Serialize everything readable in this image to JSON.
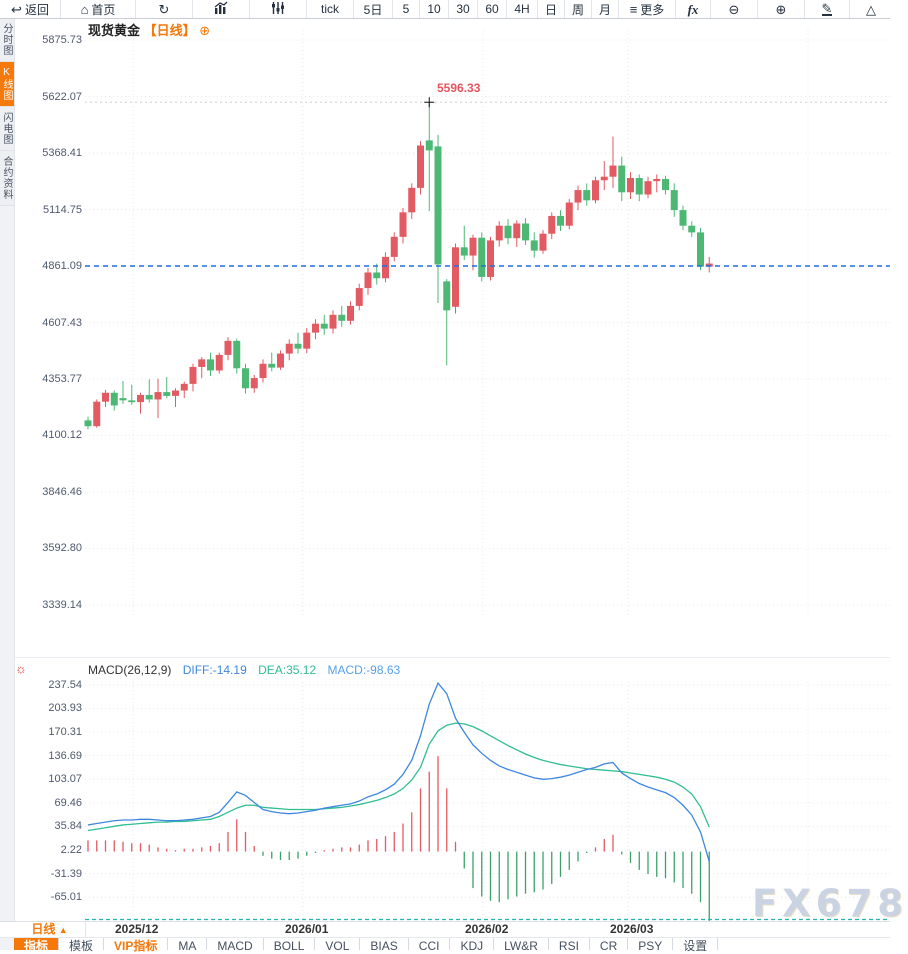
{
  "toolbar": {
    "items": [
      {
        "id": "back",
        "icon": "↩",
        "label": "返回"
      },
      {
        "id": "home",
        "icon": "⌂",
        "label": "首页"
      },
      {
        "id": "refresh",
        "icon": "↻",
        "label": ""
      },
      {
        "id": "trend-chart",
        "icon": "svg-bars",
        "label": ""
      },
      {
        "id": "candle-chart",
        "icon": "svg-sliders",
        "label": ""
      },
      {
        "id": "tick",
        "icon": "",
        "label": "tick"
      },
      {
        "id": "period-5d",
        "icon": "",
        "label": "5日"
      },
      {
        "id": "period-5",
        "icon": "",
        "label": "5"
      },
      {
        "id": "period-10",
        "icon": "",
        "label": "10"
      },
      {
        "id": "period-30",
        "icon": "",
        "label": "30"
      },
      {
        "id": "period-60",
        "icon": "",
        "label": "60"
      },
      {
        "id": "period-4h",
        "icon": "",
        "label": "4H"
      },
      {
        "id": "period-day",
        "icon": "",
        "label": "日"
      },
      {
        "id": "period-week",
        "icon": "",
        "label": "周"
      },
      {
        "id": "period-month",
        "icon": "",
        "label": "月"
      },
      {
        "id": "more",
        "icon": "≡",
        "label": "更多"
      },
      {
        "id": "fx",
        "icon": "fx-glyph",
        "label": ""
      },
      {
        "id": "zoom-out",
        "icon": "⊖",
        "label": ""
      },
      {
        "id": "zoom-in",
        "icon": "⊕",
        "label": ""
      },
      {
        "id": "draw-line",
        "icon": "pencil",
        "label": ""
      },
      {
        "id": "shape-tool",
        "icon": "△",
        "label": ""
      }
    ]
  },
  "sidebar": {
    "tabs": [
      {
        "label": "分时图",
        "active": false
      },
      {
        "label": "K线图",
        "active": true
      },
      {
        "label": "闪电图",
        "active": false
      },
      {
        "label": "合约资料",
        "active": false
      }
    ]
  },
  "chart": {
    "title": "现货黄金",
    "period_tag": "【日线】",
    "expand_icon": "⊕",
    "high_annotation": "5596.33"
  },
  "macd_header": {
    "name": "MACD(26,12,9)",
    "diff": "DIFF:-14.19",
    "dea": "DEA:35.12",
    "macd": "MACD:-98.63",
    "gear_icon": "☼"
  },
  "xaxis": {
    "period_label": "日线",
    "period_arrow": "▲",
    "labels": [
      "2025/12",
      "2026/01",
      "2026/02",
      "2026/03"
    ]
  },
  "bottom_tabs": [
    {
      "label": "指标",
      "active": true,
      "vip": false
    },
    {
      "label": "模板",
      "active": false,
      "vip": false
    },
    {
      "label": "VIP指标",
      "active": false,
      "vip": true
    },
    {
      "label": "MA",
      "active": false,
      "vip": false
    },
    {
      "label": "MACD",
      "active": false,
      "vip": false
    },
    {
      "label": "BOLL",
      "active": false,
      "vip": false
    },
    {
      "label": "VOL",
      "active": false,
      "vip": false
    },
    {
      "label": "BIAS",
      "active": false,
      "vip": false
    },
    {
      "label": "CCI",
      "active": false,
      "vip": false
    },
    {
      "label": "KDJ",
      "active": false,
      "vip": false
    },
    {
      "label": "LW&R",
      "active": false,
      "vip": false
    },
    {
      "label": "RSI",
      "active": false,
      "vip": false
    },
    {
      "label": "CR",
      "active": false,
      "vip": false
    },
    {
      "label": "PSY",
      "active": false,
      "vip": false
    },
    {
      "label": "设置",
      "active": false,
      "vip": false
    }
  ],
  "watermark": "FX678",
  "colors": {
    "up": "#e25a62",
    "down": "#4cb873",
    "diff_line": "#3d87e0",
    "dea_line": "#2fbd92",
    "price_line": "#1f6fe0",
    "accent_orange": "#f5780a",
    "annotation_red": "#e85360",
    "macd_dash_teal": "#26b3ad",
    "grid": "#e4e7eb",
    "high_line": "#d0d0d0"
  },
  "chart_data": {
    "type": "candlestick",
    "instrument": "现货黄金",
    "period": "日线",
    "price_axis_labels": [
      "5875.73",
      "5622.07",
      "5368.41",
      "5114.75",
      "4861.09",
      "4607.43",
      "4353.77",
      "4100.12",
      "3846.46",
      "3592.80",
      "3339.14"
    ],
    "price_axis_top": 5875.73,
    "price_axis_step": 253.66,
    "x_axis_labels": [
      "2025/12",
      "2026/01",
      "2026/02",
      "2026/03"
    ],
    "current_price": 4861.09,
    "high_marker": 5596.33,
    "candles_ohlc": [
      [
        4168,
        4185,
        4128,
        4142
      ],
      [
        4142,
        4262,
        4135,
        4252
      ],
      [
        4252,
        4305,
        4228,
        4292
      ],
      [
        4292,
        4302,
        4212,
        4235
      ],
      [
        4268,
        4345,
        4242,
        4258
      ],
      [
        4258,
        4328,
        4238,
        4250
      ],
      [
        4250,
        4292,
        4198,
        4282
      ],
      [
        4282,
        4352,
        4248,
        4262
      ],
      [
        4262,
        4355,
        4178,
        4295
      ],
      [
        4295,
        4362,
        4268,
        4278
      ],
      [
        4278,
        4312,
        4228,
        4302
      ],
      [
        4302,
        4342,
        4268,
        4332
      ],
      [
        4332,
        4422,
        4298,
        4408
      ],
      [
        4408,
        4452,
        4358,
        4442
      ],
      [
        4442,
        4472,
        4368,
        4392
      ],
      [
        4392,
        4472,
        4378,
        4462
      ],
      [
        4462,
        4542,
        4438,
        4525
      ],
      [
        4525,
        4535,
        4378,
        4402
      ],
      [
        4402,
        4422,
        4288,
        4312
      ],
      [
        4312,
        4372,
        4292,
        4358
      ],
      [
        4358,
        4442,
        4338,
        4422
      ],
      [
        4422,
        4472,
        4388,
        4405
      ],
      [
        4405,
        4482,
        4395,
        4468
      ],
      [
        4468,
        4532,
        4438,
        4512
      ],
      [
        4512,
        4562,
        4468,
        4490
      ],
      [
        4490,
        4582,
        4470,
        4562
      ],
      [
        4562,
        4622,
        4532,
        4602
      ],
      [
        4602,
        4642,
        4552,
        4580
      ],
      [
        4580,
        4662,
        4558,
        4642
      ],
      [
        4642,
        4682,
        4588,
        4615
      ],
      [
        4615,
        4702,
        4598,
        4682
      ],
      [
        4682,
        4782,
        4662,
        4762
      ],
      [
        4762,
        4852,
        4732,
        4832
      ],
      [
        4832,
        4872,
        4778,
        4806
      ],
      [
        4806,
        4922,
        4788,
        4902
      ],
      [
        4902,
        5012,
        4882,
        4992
      ],
      [
        4992,
        5122,
        4962,
        5102
      ],
      [
        5102,
        5232,
        5072,
        5212
      ],
      [
        5212,
        5422,
        5182,
        5402
      ],
      [
        5425,
        5596.33,
        5108,
        5380
      ],
      [
        5398,
        5450,
        4695,
        4868
      ],
      [
        4792,
        4802,
        4415,
        4662
      ],
      [
        4678,
        4962,
        4648,
        4945
      ],
      [
        4945,
        5042,
        4888,
        4908
      ],
      [
        4908,
        5002,
        4842,
        4988
      ],
      [
        4988,
        5012,
        4792,
        4812
      ],
      [
        4812,
        4992,
        4796,
        4976
      ],
      [
        4976,
        5062,
        4948,
        5042
      ],
      [
        5042,
        5072,
        4958,
        4986
      ],
      [
        4986,
        5066,
        4946,
        5052
      ],
      [
        5052,
        5076,
        4956,
        4976
      ],
      [
        4976,
        5012,
        4898,
        4930
      ],
      [
        4930,
        5022,
        4916,
        5006
      ],
      [
        5006,
        5102,
        4982,
        5086
      ],
      [
        5086,
        5112,
        5018,
        5042
      ],
      [
        5042,
        5162,
        5026,
        5146
      ],
      [
        5146,
        5222,
        5112,
        5202
      ],
      [
        5202,
        5232,
        5132,
        5156
      ],
      [
        5156,
        5262,
        5142,
        5246
      ],
      [
        5246,
        5332,
        5202,
        5262
      ],
      [
        5262,
        5442,
        5212,
        5312
      ],
      [
        5312,
        5352,
        5152,
        5192
      ],
      [
        5192,
        5282,
        5162,
        5256
      ],
      [
        5256,
        5272,
        5152,
        5182
      ],
      [
        5182,
        5262,
        5166,
        5242
      ],
      [
        5242,
        5272,
        5192,
        5252
      ],
      [
        5252,
        5266,
        5182,
        5202
      ],
      [
        5202,
        5232,
        5082,
        5112
      ],
      [
        5112,
        5132,
        5022,
        5042
      ],
      [
        5042,
        5062,
        4992,
        5012
      ],
      [
        5012,
        5032,
        4842,
        4858
      ],
      [
        4858,
        4902,
        4832,
        4872
      ]
    ],
    "macd": {
      "params": [
        26,
        12,
        9
      ],
      "diff_current": -14.19,
      "dea_current": 35.12,
      "macd_current": -98.63,
      "axis_labels": [
        "237.54",
        "203.93",
        "170.31",
        "136.69",
        "103.07",
        "69.46",
        "35.84",
        "2.22",
        "-31.39",
        "-65.01"
      ],
      "hist_rule": "2*(diff-dea)",
      "diff": [
        38,
        40,
        42,
        44,
        45,
        45,
        46,
        46,
        45,
        44,
        44,
        45,
        46,
        48,
        50,
        56,
        70,
        85,
        80,
        70,
        60,
        57,
        55,
        54,
        55,
        57,
        59,
        62,
        64,
        66,
        68,
        72,
        78,
        82,
        88,
        96,
        110,
        130,
        165,
        210,
        240,
        225,
        190,
        170,
        152,
        140,
        130,
        122,
        117,
        113,
        109,
        105,
        103,
        104,
        106,
        109,
        113,
        117,
        120,
        125,
        127,
        112,
        104,
        97,
        92,
        88,
        84,
        77,
        66,
        52,
        28,
        -14.19
      ],
      "dea": [
        30,
        32,
        34,
        36,
        38,
        39,
        40,
        41,
        42,
        42,
        43,
        43,
        44,
        45,
        46,
        50,
        56,
        62,
        66,
        66,
        63,
        62,
        61,
        60,
        60,
        60,
        60,
        61,
        62,
        63,
        65,
        67,
        70,
        73,
        77,
        82,
        90,
        102,
        120,
        153,
        172,
        180,
        183,
        182,
        178,
        172,
        165,
        158,
        151,
        145,
        139,
        134,
        130,
        127,
        124,
        122,
        120,
        118,
        117,
        116,
        115,
        114,
        112,
        110,
        108,
        106,
        103,
        99,
        92,
        82,
        64,
        35.12
      ]
    }
  }
}
